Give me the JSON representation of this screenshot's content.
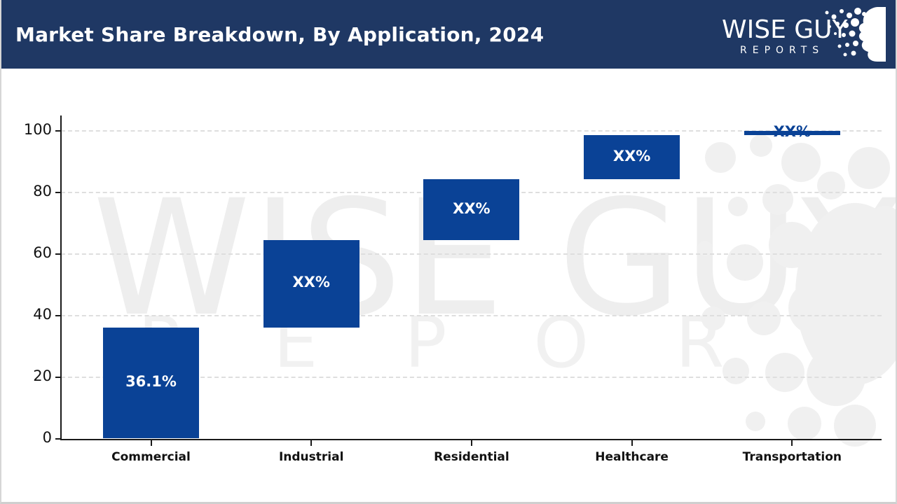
{
  "header": {
    "title": "Market Share Breakdown, By Application, 2024",
    "bg_color": "#1f3864",
    "logo": {
      "line1": "WISE GUY",
      "line2": "R E P O R T S"
    }
  },
  "watermark": {
    "line1": "WISE GUY",
    "line2": "R E P O R T S"
  },
  "chart_data": {
    "type": "bar",
    "subtype": "waterfall",
    "title": "Market Share Breakdown, By Application, 2024",
    "categories": [
      "Commercial",
      "Industrial",
      "Residential",
      "Healthcare",
      "Transportation"
    ],
    "segments": [
      [
        0,
        36.1
      ],
      [
        36.1,
        64.5
      ],
      [
        64.5,
        84.1
      ],
      [
        84.1,
        98.5
      ],
      [
        98.5,
        100
      ]
    ],
    "values": [
      36.1,
      28.4,
      19.6,
      14.4,
      1.5
    ],
    "bar_labels": [
      "36.1%",
      "XX%",
      "XX%",
      "XX%",
      "XX%"
    ],
    "bar_label_colors": [
      "#ffffff",
      "#ffffff",
      "#ffffff",
      "#ffffff",
      "#0a4296"
    ],
    "bar_color": "#0a4296",
    "xlabel": "",
    "ylabel": "",
    "yticks": [
      0,
      20,
      40,
      60,
      80,
      100
    ],
    "ylim": [
      0,
      105
    ],
    "grid": "horizontal-dashed",
    "legend": "none"
  }
}
